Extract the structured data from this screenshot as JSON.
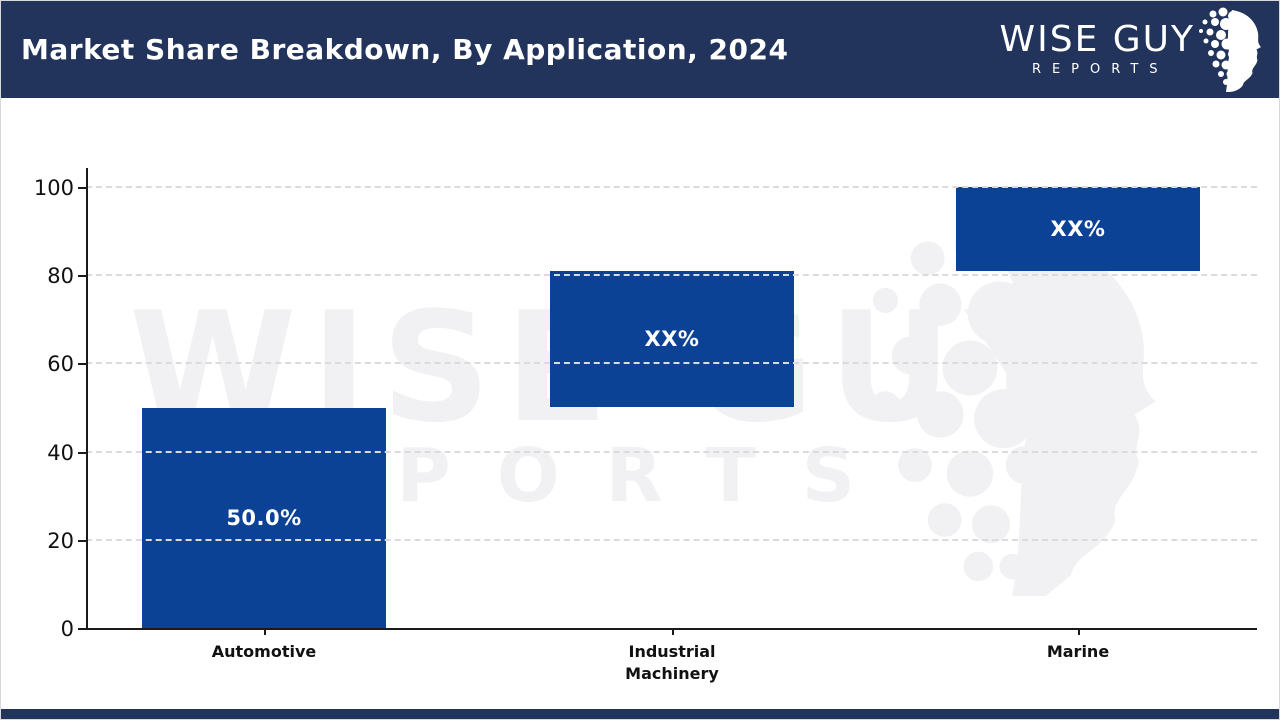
{
  "header": {
    "title": "Market Share Breakdown, By Application, 2024",
    "logo": {
      "line1": "WISE GUY",
      "line2": "REPORTS"
    }
  },
  "watermark": {
    "line1": "WISE GUY",
    "line2": "REPORTS"
  },
  "colors": {
    "header_bg": "#22345c",
    "bar_blue": "#0b4296",
    "watermark_gray": "#f1f1f4"
  },
  "chart_data": {
    "type": "bar",
    "subtype": "floating-waterfall",
    "title": "",
    "xlabel": "",
    "ylabel": "",
    "categories": [
      "Automotive",
      "Industrial Machinery",
      "Marine"
    ],
    "bars": [
      {
        "category": "Automotive",
        "start": 0,
        "end": 50,
        "label": "50.0%"
      },
      {
        "category": "Industrial Machinery",
        "start": 50,
        "end": 81,
        "label": "XX%"
      },
      {
        "category": "Marine",
        "start": 81,
        "end": 100,
        "label": "XX%"
      }
    ],
    "ylim": [
      0,
      100
    ],
    "yticks": [
      0,
      20,
      40,
      60,
      80,
      100
    ],
    "grid": "horizontal-dashed",
    "legend": "none",
    "bar_color": "#0b4296",
    "label_color": "#ffffff"
  }
}
